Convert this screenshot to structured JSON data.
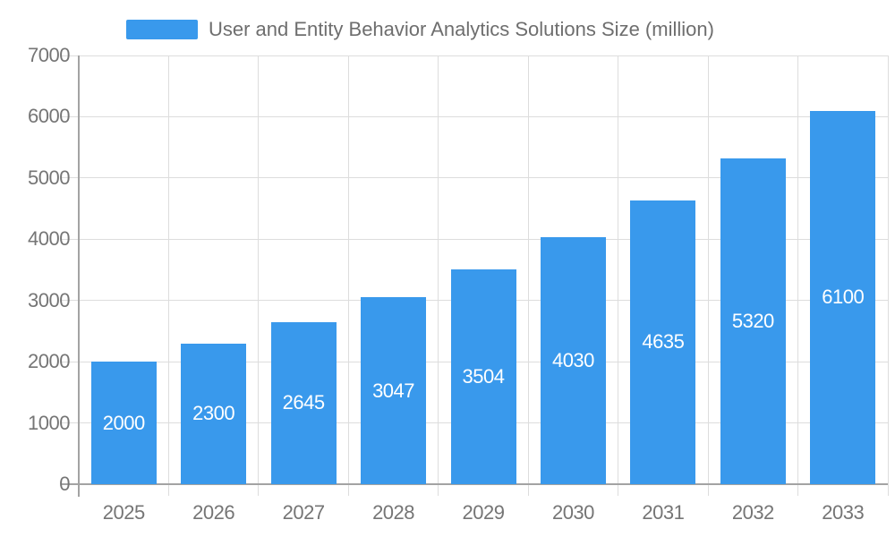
{
  "legend": {
    "label": "User and Entity Behavior Analytics Solutions Size (million)"
  },
  "chart_data": {
    "type": "bar",
    "title": "User and Entity Behavior Analytics Solutions Size (million)",
    "categories": [
      "2025",
      "2026",
      "2027",
      "2028",
      "2029",
      "2030",
      "2031",
      "2032",
      "2033"
    ],
    "values": [
      2000,
      2300,
      2645,
      3047,
      3504,
      4030,
      4635,
      5320,
      6100
    ],
    "xlabel": "",
    "ylabel": "",
    "ylim": [
      0,
      7000
    ],
    "ytick_interval": 1000,
    "yticks": [
      0,
      1000,
      2000,
      3000,
      4000,
      5000,
      6000,
      7000
    ],
    "grid": true,
    "legend_position": "top",
    "value_labels": "inside-center"
  },
  "colors": {
    "bar": "#3999EC",
    "value_label": "#FFFFFF",
    "grid_line": "#DDDDDD",
    "axis_line": "#A3A3A3",
    "axis_label": "#757575",
    "legend_text": "#6E6E6E",
    "background": "#FFFFFF"
  }
}
